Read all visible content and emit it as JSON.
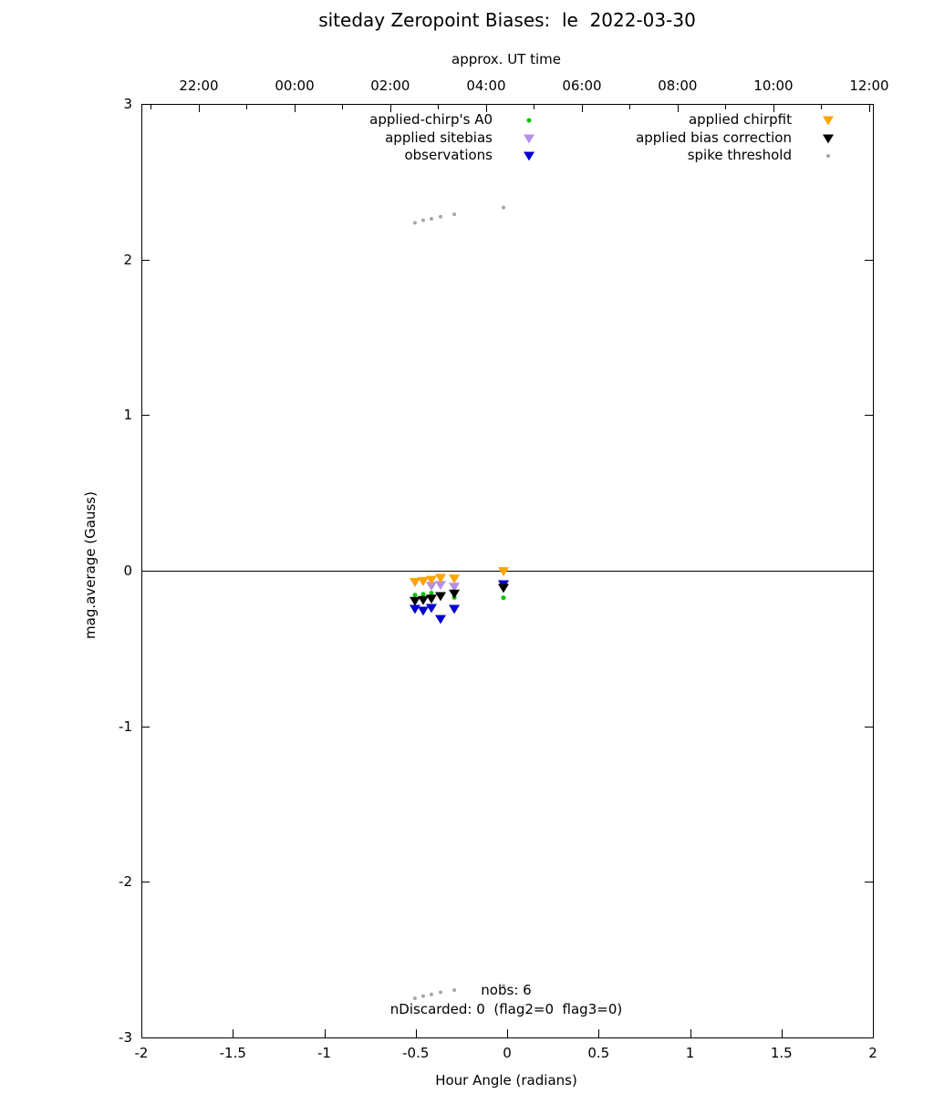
{
  "title": "siteday Zeropoint Biases:  le  2022-03-30",
  "axes": {
    "top_label": "approx. UT time",
    "bottom_label": "Hour Angle (radians)",
    "left_label": "mag.average (Gauss)",
    "x_ticks": [
      {
        "label": "-2",
        "value": -2
      },
      {
        "label": "-1.5",
        "value": -1.5
      },
      {
        "label": "-1",
        "value": -1
      },
      {
        "label": "-0.5",
        "value": -0.5
      },
      {
        "label": "0",
        "value": 0
      },
      {
        "label": "0.5",
        "value": 0.5
      },
      {
        "label": "1",
        "value": 1
      },
      {
        "label": "1.5",
        "value": 1.5
      },
      {
        "label": "2",
        "value": 2
      }
    ],
    "y_ticks": [
      {
        "label": "3",
        "value": 3
      },
      {
        "label": "2",
        "value": 2
      },
      {
        "label": "1",
        "value": 1
      },
      {
        "label": "0",
        "value": 0
      },
      {
        "label": "-1",
        "value": -1
      },
      {
        "label": "-2",
        "value": -2
      },
      {
        "label": "-3",
        "value": -3
      }
    ],
    "ut_major_ticks": [
      {
        "label": "22:00",
        "ha": -1.686
      },
      {
        "label": "00:00",
        "ha": -1.162
      },
      {
        "label": "02:00",
        "ha": -0.639
      },
      {
        "label": "04:00",
        "ha": -0.115
      },
      {
        "label": "06:00",
        "ha": 0.409
      },
      {
        "label": "08:00",
        "ha": 0.932
      },
      {
        "label": "10:00",
        "ha": 1.456
      },
      {
        "label": "12:00",
        "ha": 1.98
      }
    ],
    "ut_minor_ticks": [
      -1.948,
      -1.424,
      -0.901,
      -0.377,
      0.147,
      0.67,
      1.194,
      1.718
    ]
  },
  "legend": {
    "left": [
      {
        "label": "applied-chirp's A0",
        "marker": "dot",
        "color": "#00c400",
        "msize": 2.5
      },
      {
        "label": "applied sitebias",
        "marker": "triangle-down",
        "color": "#b78fe6",
        "msize": 6
      },
      {
        "label": "observations",
        "marker": "triangle-down",
        "color": "#0000d0",
        "msize": 6
      }
    ],
    "right": [
      {
        "label": "applied chirpfit",
        "marker": "triangle-down",
        "color": "#ffa500",
        "msize": 6
      },
      {
        "label": "applied bias correction",
        "marker": "triangle-down",
        "color": "#000000",
        "msize": 6
      },
      {
        "label": "spike threshold",
        "marker": "dot",
        "color": "#a6a6a6",
        "msize": 2
      }
    ]
  },
  "annotations": {
    "nobs": "nobs: 6",
    "ndiscarded": "nDiscarded: 0  (flag2=0  flag3=0)"
  },
  "chart_data": {
    "type": "scatter",
    "title": "siteday Zeropoint Biases:  le  2022-03-30",
    "xlabel": "Hour Angle (radians)",
    "x2label": "approx. UT time",
    "ylabel": "mag.average (Gauss)",
    "x_range": [
      -2,
      2
    ],
    "y_range": [
      -3,
      3
    ],
    "zero_line": true,
    "grid": false,
    "legend_position": "top-inside-two-columns",
    "nobs": 6,
    "x": [
      -0.504,
      -0.459,
      -0.414,
      -0.364,
      -0.289,
      -0.02
    ],
    "series": [
      {
        "name": "applied-chirp's A0",
        "marker": "dot",
        "color": "#00c400",
        "msize": 2.5,
        "y": [
          -0.156,
          -0.151,
          -0.144,
          -0.158,
          -0.172,
          -0.174
        ]
      },
      {
        "name": "applied sitebias",
        "marker": "triangle-down",
        "color": "#b78fe6",
        "msize": 6,
        "y": [
          -0.074,
          -0.068,
          -0.098,
          -0.092,
          -0.104,
          -0.09
        ]
      },
      {
        "name": "observations",
        "marker": "triangle-down",
        "color": "#0000d0",
        "msize": 6,
        "y": [
          -0.246,
          -0.258,
          -0.24,
          -0.311,
          -0.246,
          -0.088
        ]
      },
      {
        "name": "applied chirpfit",
        "marker": "triangle-down",
        "color": "#ffa500",
        "msize": 6,
        "y": [
          -0.073,
          -0.067,
          -0.059,
          -0.047,
          -0.051,
          -0.004
        ]
      },
      {
        "name": "applied bias correction",
        "marker": "triangle-down",
        "color": "#000000",
        "msize": 6,
        "y": [
          -0.195,
          -0.189,
          -0.18,
          -0.164,
          -0.148,
          -0.111
        ]
      },
      {
        "name": "spike threshold",
        "marker": "dot",
        "color": "#a6a6a6",
        "msize": 2,
        "y_upper": [
          2.236,
          2.252,
          2.262,
          2.275,
          2.291,
          2.334
        ],
        "y_lower": [
          -2.748,
          -2.734,
          -2.723,
          -2.709,
          -2.695,
          -2.668
        ]
      }
    ]
  }
}
